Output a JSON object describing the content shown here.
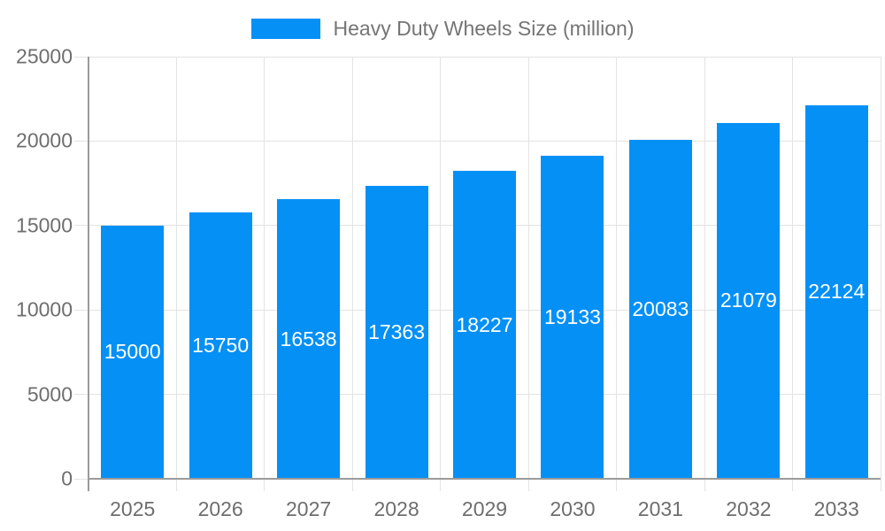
{
  "chart_data": {
    "type": "bar",
    "title": "Heavy Duty Wheels Size (million)",
    "categories": [
      "2025",
      "2026",
      "2027",
      "2028",
      "2029",
      "2030",
      "2031",
      "2032",
      "2033"
    ],
    "values": [
      15000,
      15750,
      16538,
      17363,
      18227,
      19133,
      20083,
      21079,
      22124
    ],
    "series": [
      {
        "name": "Heavy Duty Wheels Size (million)",
        "values": [
          15000,
          15750,
          16538,
          17363,
          18227,
          19133,
          20083,
          21079,
          22124
        ]
      }
    ],
    "xlabel": "",
    "ylabel": "",
    "ylim": [
      0,
      25000
    ],
    "yticks": [
      0,
      5000,
      10000,
      15000,
      20000,
      25000
    ],
    "grid": true,
    "legend_position": "top-center",
    "bar_value_labels": "inside-center",
    "colors": {
      "bar": "#0590f6",
      "grid": "#e3e3e3",
      "axis": "#9b9b9b",
      "axis_text": "#6e6e6e",
      "legend_text": "#757575",
      "bar_label": "#ffffff"
    }
  }
}
